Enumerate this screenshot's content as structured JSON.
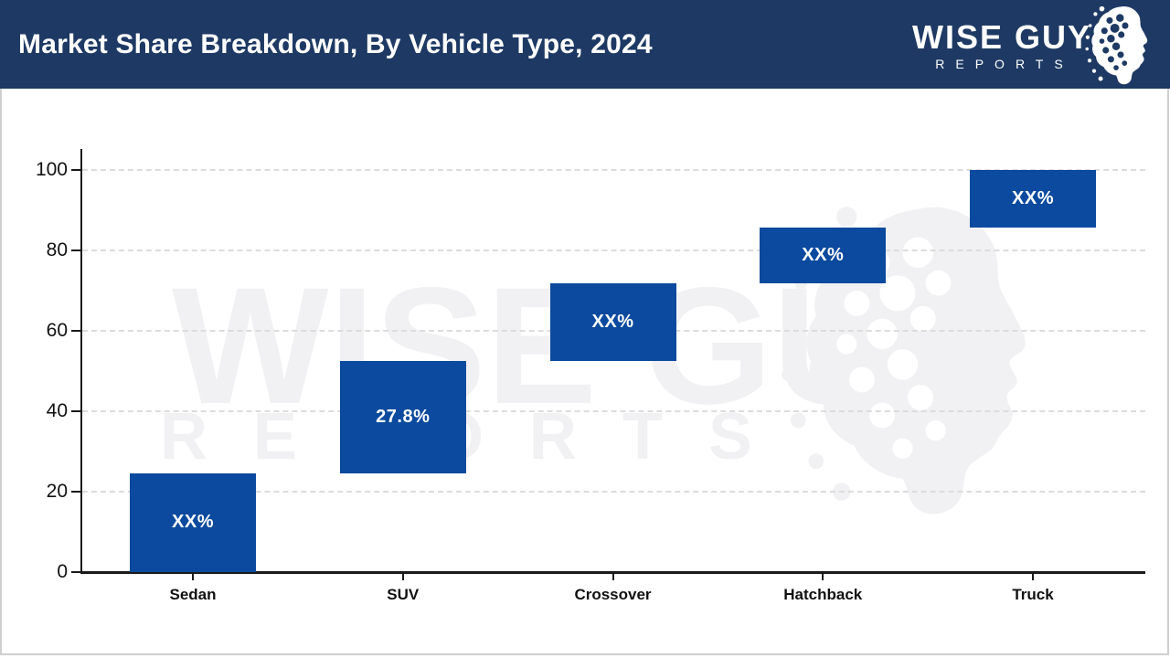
{
  "header": {
    "title": "Market Share Breakdown, By Vehicle Type, 2024",
    "logo": {
      "line1": "WISE GUY",
      "line2": "REPORTS"
    }
  },
  "watermark": {
    "line1": "WISE GUY",
    "line2": "REPORTS"
  },
  "chart_data": {
    "type": "bar",
    "subtype": "floating-waterfall",
    "title": "Market Share Breakdown, By Vehicle Type, 2024",
    "categories": [
      "Sedan",
      "SUV",
      "Crossover",
      "Hatchback",
      "Truck"
    ],
    "series": [
      {
        "name": "Market share (%)",
        "segments": [
          {
            "category": "Sedan",
            "start": 0,
            "end": 24.6,
            "label": "XX%"
          },
          {
            "category": "SUV",
            "start": 24.6,
            "end": 52.4,
            "label": "27.8%"
          },
          {
            "category": "Crossover",
            "start": 52.4,
            "end": 71.8,
            "label": "XX%"
          },
          {
            "category": "Hatchback",
            "start": 71.8,
            "end": 85.7,
            "label": "XX%"
          },
          {
            "category": "Truck",
            "start": 85.7,
            "end": 100,
            "label": "XX%"
          }
        ]
      }
    ],
    "xlabel": "",
    "ylabel": "",
    "ylim": [
      0,
      100
    ],
    "yticks": [
      0,
      20,
      40,
      60,
      80,
      100
    ],
    "grid": "horizontal-dashed",
    "legend": "none",
    "colors": {
      "bar": "#0b4a9e",
      "bar_label": "#ffffff",
      "header_bg": "#1e3a64",
      "watermark": "#f1f1f3",
      "grid": "#dcdcdc",
      "axis": "#1a1a1a",
      "frame_border": "#cfcfcf"
    }
  }
}
